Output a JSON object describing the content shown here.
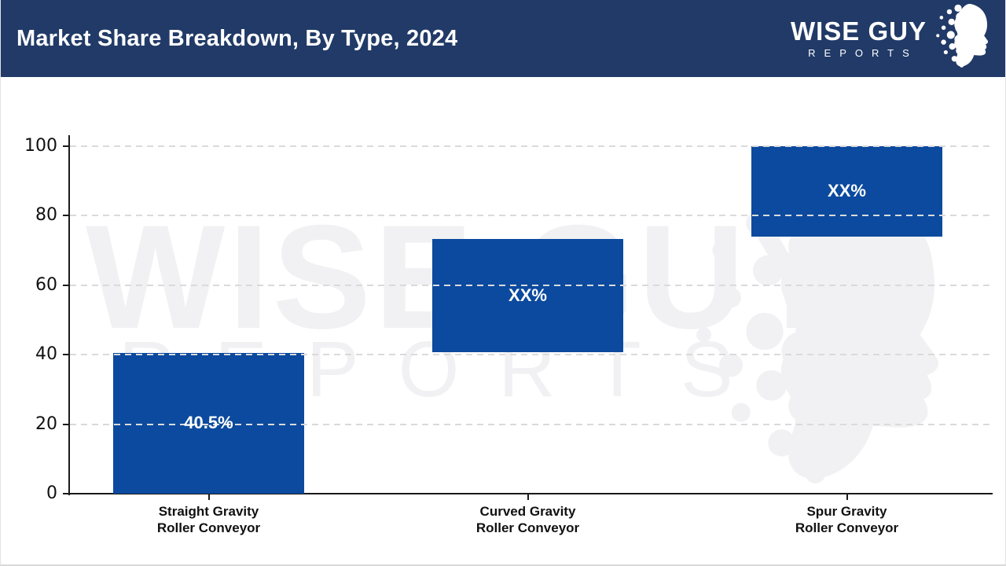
{
  "header": {
    "title": "Market Share Breakdown, By Type, 2024",
    "logo": {
      "wordmark": "WISE GUY",
      "subtitle": "REPORTS"
    }
  },
  "watermark": {
    "wordmark": "WISE GUY",
    "subtitle": "REPORTS"
  },
  "colors": {
    "header_bg": "#213a67",
    "bar": "#0b4a9e",
    "bar_label": "#ffffff",
    "gridline": "#dadada",
    "watermark": "#f1f1f3"
  },
  "chart_data": {
    "type": "bar",
    "subtype": "waterfall",
    "title": "Market Share Breakdown, By Type, 2024",
    "grid": "horizontal-dashed",
    "legend": "none",
    "ylim": [
      0,
      100
    ],
    "yticks": [
      0,
      20,
      40,
      60,
      80,
      100
    ],
    "bar_color": "#0b4a9e",
    "label_color": "#ffffff",
    "bars": [
      {
        "category_lines": [
          "Straight Gravity",
          "Roller Conveyor"
        ],
        "start": 0,
        "end": 40.5,
        "label": "40.5%"
      },
      {
        "category_lines": [
          "Curved Gravity",
          "Roller Conveyor"
        ],
        "start": 40.7,
        "end": 73.3,
        "label": "XX%"
      },
      {
        "category_lines": [
          "Spur Gravity",
          "Roller Conveyor"
        ],
        "start": 74,
        "end": 100,
        "label": "XX%"
      }
    ]
  }
}
